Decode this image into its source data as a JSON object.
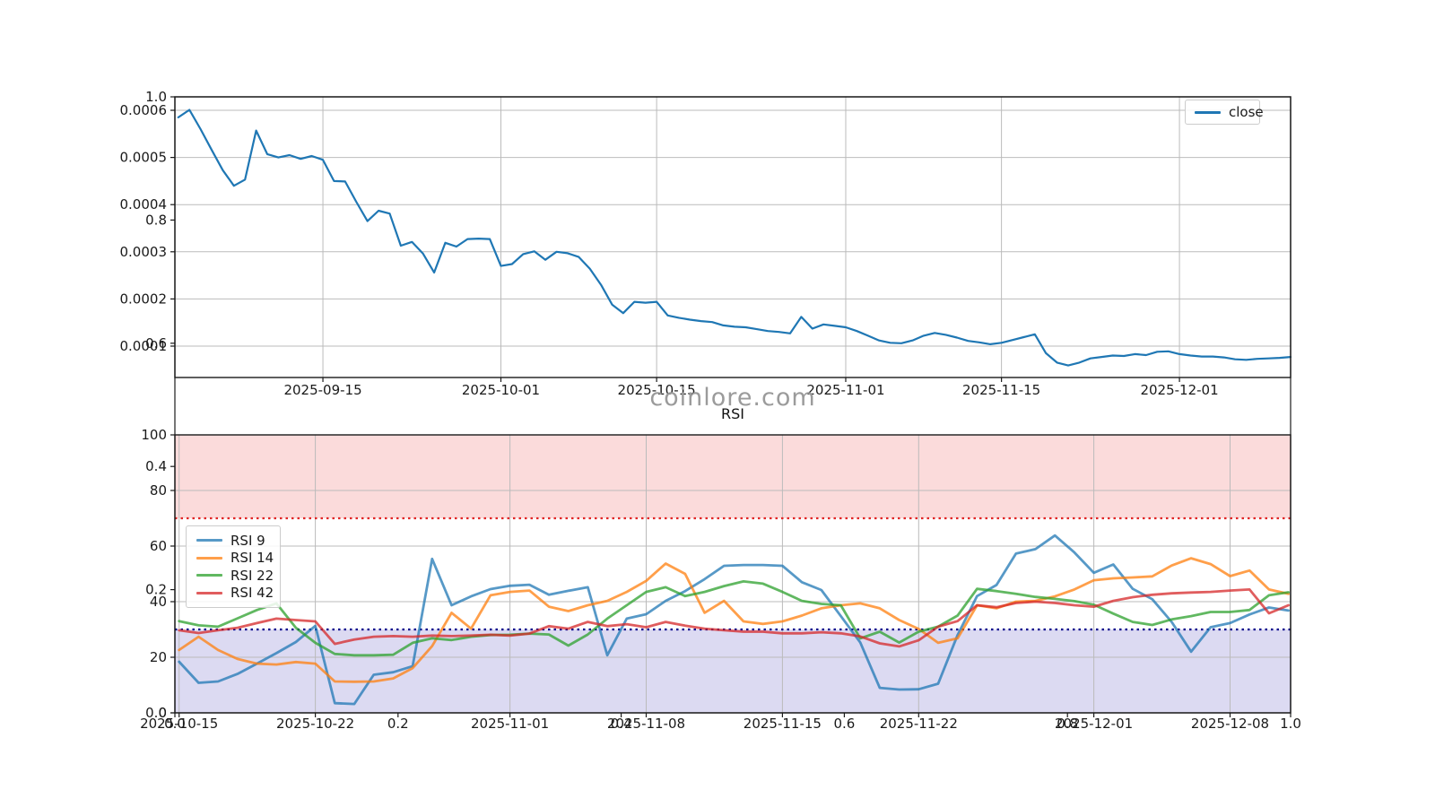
{
  "watermark": "coinlore.com",
  "colors": {
    "price_line": "#1f77b4",
    "grid": "#bbbbbb",
    "spine": "#1a1a1a",
    "overbought_band": "#fbdbdb",
    "oversold_band": "#dcdaf2",
    "overbought_line": "#e02525",
    "oversold_line": "#00008b"
  },
  "overlay_axis": {
    "y_labels": [
      "1.0",
      "0.8",
      "0.6",
      "0.4",
      "0.2",
      "0.0"
    ],
    "x_labels": [
      "0.0",
      "0.2",
      "0.4",
      "0.6",
      "0.8",
      "1.0"
    ]
  },
  "chart_data": [
    {
      "type": "line",
      "title": "",
      "xlabel": "",
      "ylabel": "",
      "grid": true,
      "start_date": "2025-09-02",
      "step_days": 1,
      "ylim": [
        3.35e-05,
        0.000629
      ],
      "yticks": [
        {
          "label": "0.0006",
          "value": 0.0006
        },
        {
          "label": "0.0005",
          "value": 0.0005
        },
        {
          "label": "0.0004",
          "value": 0.0004
        },
        {
          "label": "0.0003",
          "value": 0.0003
        },
        {
          "label": "0.0002",
          "value": 0.0002
        },
        {
          "label": "0.0001",
          "value": 0.0001
        }
      ],
      "xticks": [
        {
          "label": "2025-09-15",
          "day": 13
        },
        {
          "label": "2025-10-01",
          "day": 29
        },
        {
          "label": "2025-10-15",
          "day": 43
        },
        {
          "label": "2025-11-01",
          "day": 60
        },
        {
          "label": "2025-11-15",
          "day": 74
        },
        {
          "label": "2025-12-01",
          "day": 90
        }
      ],
      "legend": {
        "position": "upper right"
      },
      "series": [
        {
          "name": "close",
          "color": "#1f77b4",
          "values": [
            0.000585,
            0.000601,
            0.00056,
            0.000516,
            0.000473,
            0.00044,
            0.000453,
            0.000557,
            0.000507,
            0.0005,
            0.000505,
            0.000497,
            0.000503,
            0.000495,
            0.00045,
            0.000449,
            0.000406,
            0.000365,
            0.000387,
            0.000381,
            0.000313,
            0.000321,
            0.000296,
            0.000256,
            0.000319,
            0.000311,
            0.000327,
            0.000328,
            0.000327,
            0.00027,
            0.000274,
            0.000295,
            0.000301,
            0.000283,
            0.0003,
            0.000297,
            0.000289,
            0.000264,
            0.00023,
            0.000188,
            0.00017,
            0.000194,
            0.000192,
            0.000194,
            0.000165,
            0.00016,
            0.000156,
            0.000153,
            0.000151,
            0.000144,
            0.000141,
            0.00014,
            0.000136,
            0.000132,
            0.00013,
            0.000127,
            0.000162,
            0.000137,
            0.000146,
            0.000143,
            0.00014,
            0.000132,
            0.000122,
            0.000112,
            0.000107,
            0.000106,
            0.000112,
            0.000122,
            0.000128,
            0.000124,
            0.000118,
            0.000111,
            0.000108,
            0.000104,
            0.000107,
            0.000113,
            0.000119,
            0.000125,
            8.5e-05,
            6.5e-05,
            5.9e-05,
            6.5e-05,
            7.4e-05,
            7.7e-05,
            8e-05,
            7.9e-05,
            8.3e-05,
            8.1e-05,
            8.8e-05,
            8.9e-05,
            8.3e-05,
            8e-05,
            7.8e-05,
            7.8e-05,
            7.6e-05,
            7.2e-05,
            7.1e-05,
            7.3e-05,
            7.4e-05,
            7.5e-05,
            7.7e-05
          ]
        }
      ]
    },
    {
      "type": "line",
      "title": "RSI",
      "xlabel": "",
      "ylabel": "",
      "grid": true,
      "start_date": "2025-10-15",
      "step_days": 1,
      "ylim": [
        0,
        100
      ],
      "line_opacity": 0.75,
      "yticks": [
        {
          "label": "100",
          "value": 100
        },
        {
          "label": "80",
          "value": 80
        },
        {
          "label": "60",
          "value": 60
        },
        {
          "label": "40",
          "value": 40
        },
        {
          "label": "20",
          "value": 20
        },
        {
          "label": "0",
          "value": 0
        }
      ],
      "xticks": [
        {
          "label": "2025-10-15",
          "day": 0
        },
        {
          "label": "2025-10-22",
          "day": 7
        },
        {
          "label": "2025-11-01",
          "day": 17
        },
        {
          "label": "2025-11-08",
          "day": 24
        },
        {
          "label": "2025-11-15",
          "day": 31
        },
        {
          "label": "2025-11-22",
          "day": 38
        },
        {
          "label": "2025-12-01",
          "day": 47
        },
        {
          "label": "2025-12-08",
          "day": 54
        }
      ],
      "hlines": [
        {
          "value": 70,
          "color": "#e02525",
          "style": "dotted"
        },
        {
          "value": 30,
          "color": "#00008b",
          "style": "dotted"
        }
      ],
      "bands": [
        {
          "from": 70,
          "to": 100,
          "color": "#fbdbdb"
        },
        {
          "from": 0,
          "to": 30,
          "color": "#dcdaf2"
        }
      ],
      "legend": {
        "position": "upper left"
      },
      "series": [
        {
          "name": "RSI 9",
          "color": "#1f77b4",
          "values": [
            18.4,
            10.8,
            11.3,
            14.0,
            17.7,
            21.5,
            25.5,
            31.3,
            3.5,
            3.2,
            13.7,
            14.6,
            16.8,
            55.4,
            38.7,
            41.9,
            44.5,
            45.7,
            46.1,
            42.5,
            43.9,
            45.2,
            20.7,
            33.9,
            35.5,
            40.3,
            43.8,
            48.1,
            52.9,
            53.2,
            53.2,
            52.9,
            47.0,
            44.2,
            34.8,
            25.3,
            9.0,
            8.4,
            8.5,
            10.5,
            28.0,
            42.0,
            46.0,
            57.3,
            58.9,
            63.8,
            57.7,
            50.4,
            53.4,
            44.6,
            40.9,
            32.7,
            22.0,
            30.8,
            32.3,
            35.4,
            37.9,
            36.8
          ]
        },
        {
          "name": "RSI 14",
          "color": "#ff7f0e",
          "values": [
            22.6,
            27.4,
            22.6,
            19.4,
            17.7,
            17.4,
            18.3,
            17.7,
            11.3,
            11.2,
            11.3,
            12.4,
            16.1,
            24.0,
            36.0,
            30.3,
            42.3,
            43.5,
            44.0,
            38.2,
            36.6,
            38.7,
            40.3,
            43.5,
            47.5,
            53.7,
            50.0,
            36.0,
            40.3,
            32.9,
            32.0,
            32.9,
            35.0,
            37.6,
            38.7,
            39.4,
            37.6,
            33.4,
            30.2,
            25.2,
            26.8,
            38.7,
            37.6,
            40.0,
            40.3,
            41.9,
            44.4,
            47.7,
            48.4,
            48.7,
            49.1,
            53.0,
            55.6,
            53.5,
            49.2,
            51.2,
            44.4,
            42.8
          ]
        },
        {
          "name": "RSI 22",
          "color": "#2ca02c",
          "values": [
            33.0,
            31.5,
            31.0,
            34.0,
            37.0,
            39.4,
            30.6,
            25.2,
            21.2,
            20.7,
            20.7,
            20.9,
            25.2,
            26.8,
            26.2,
            27.4,
            28.0,
            28.1,
            28.5,
            28.2,
            24.2,
            28.2,
            33.9,
            38.7,
            43.5,
            45.2,
            42.0,
            43.5,
            45.6,
            47.3,
            46.5,
            43.5,
            40.3,
            39.2,
            38.7,
            26.8,
            29.2,
            25.3,
            29.2,
            31.0,
            35.0,
            44.6,
            43.8,
            42.8,
            41.7,
            41.0,
            40.2,
            38.9,
            35.7,
            32.7,
            31.6,
            33.6,
            34.8,
            36.3,
            36.3,
            37.0,
            42.3,
            43.4
          ]
        },
        {
          "name": "RSI 42",
          "color": "#d62728",
          "values": [
            29.7,
            28.7,
            29.7,
            30.6,
            32.3,
            33.9,
            33.4,
            32.9,
            24.8,
            26.4,
            27.4,
            27.6,
            27.4,
            27.8,
            27.6,
            27.8,
            28.1,
            27.8,
            28.5,
            31.2,
            30.3,
            32.7,
            31.2,
            31.9,
            30.8,
            32.7,
            31.4,
            30.3,
            29.7,
            29.2,
            29.2,
            28.6,
            28.6,
            29.0,
            28.6,
            27.5,
            25.0,
            23.9,
            26.1,
            31.0,
            33.0,
            38.7,
            38.0,
            39.5,
            40.0,
            39.5,
            38.7,
            38.2,
            40.3,
            41.6,
            42.5,
            43.0,
            43.3,
            43.5,
            44.0,
            44.4,
            35.8,
            38.7
          ]
        }
      ]
    }
  ]
}
